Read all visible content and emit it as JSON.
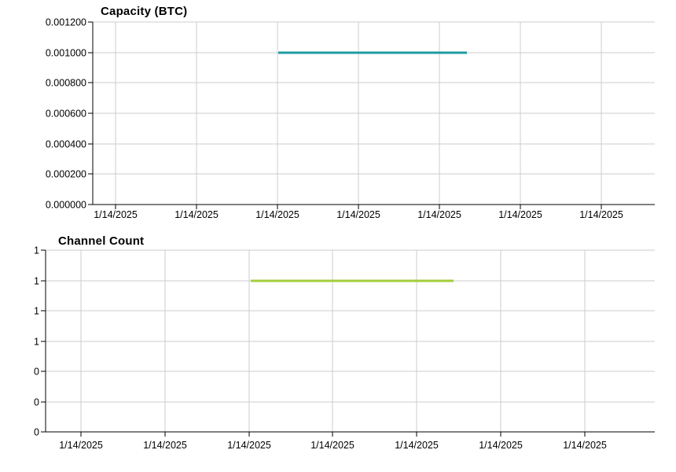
{
  "page": {
    "background": "#ffffff"
  },
  "colors": {
    "grid": "#cccccc",
    "axis": "#000000",
    "text": "#000000",
    "capacity_line": "#1f9ba1",
    "channel_line": "#a3ce3a"
  },
  "chart_data": [
    {
      "id": "capacity-btc",
      "type": "line",
      "title": "Capacity (BTC)",
      "xlabel": "",
      "ylabel": "",
      "ylim": [
        0,
        0.0012
      ],
      "grid": true,
      "legend": "none",
      "y_tick_labels": [
        "0.001200",
        "0.001000",
        "0.000800",
        "0.000600",
        "0.000400",
        "0.000200",
        "0.000000"
      ],
      "y_tick_values": [
        0.0012,
        0.001,
        0.0008,
        0.0006,
        0.0004,
        0.0002,
        0
      ],
      "x_tick_labels": [
        "1/14/2025",
        "1/14/2025",
        "1/14/2025",
        "1/14/2025",
        "1/14/2025",
        "1/14/2025",
        "1/14/2025"
      ],
      "series": [
        {
          "name": "Capacity (BTC)",
          "color": "#1f9ba1",
          "value": 0.001,
          "x_start_frac": 0.33,
          "x_end_frac": 0.666,
          "points": [
            {
              "x": "1/14/2025",
              "y": 0.001
            },
            {
              "x": "1/14/2025",
              "y": 0.001
            }
          ]
        }
      ]
    },
    {
      "id": "channel-count",
      "type": "line",
      "title": "Channel Count",
      "xlabel": "",
      "ylabel": "",
      "ylim": [
        0,
        1.2
      ],
      "grid": true,
      "legend": "none",
      "y_tick_labels": [
        "1",
        "1",
        "1",
        "1",
        "0",
        "0",
        "0"
      ],
      "y_tick_values": [
        1.2,
        1.0,
        0.8,
        0.6,
        0.4,
        0.2,
        0
      ],
      "x_tick_labels": [
        "1/14/2025",
        "1/14/2025",
        "1/14/2025",
        "1/14/2025",
        "1/14/2025",
        "1/14/2025",
        "1/14/2025"
      ],
      "series": [
        {
          "name": "Channel Count",
          "color": "#a3ce3a",
          "value": 1,
          "x_start_frac": 0.337,
          "x_end_frac": 0.67,
          "points": [
            {
              "x": "1/14/2025",
              "y": 1
            },
            {
              "x": "1/14/2025",
              "y": 1
            }
          ]
        }
      ]
    }
  ]
}
